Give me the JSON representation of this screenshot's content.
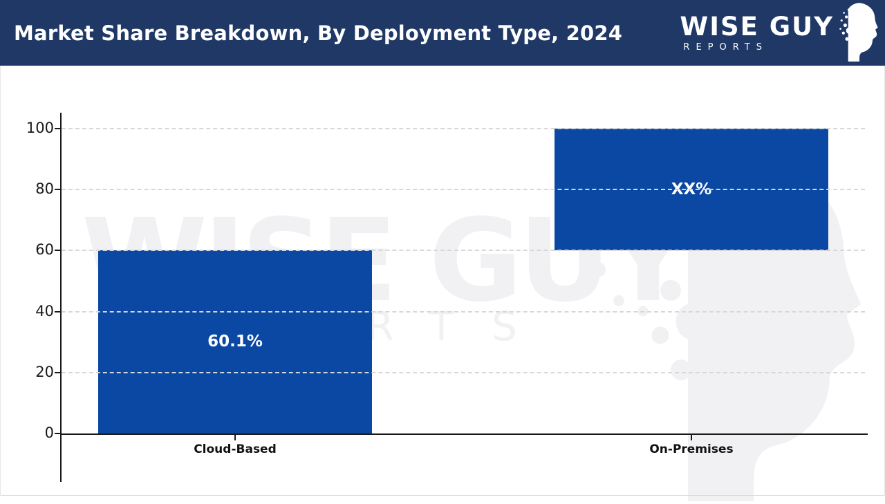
{
  "header": {
    "title": "Market Share Breakdown, By Deployment Type, 2024",
    "bg_color": "#1f3865",
    "logo": {
      "line1": "WISE GUY",
      "line2": "REPORTS"
    }
  },
  "watermark": {
    "line1": "WISE GUY",
    "line2": "REPORTS",
    "color": "#f1f1f4"
  },
  "chart_data": {
    "type": "bar",
    "title": "Market Share Breakdown, By Deployment Type, 2024",
    "categories": [
      "Cloud-Based",
      "On-Premises"
    ],
    "bars": [
      {
        "category": "Cloud-Based",
        "start": 0,
        "end": 60.1,
        "label": "60.1%"
      },
      {
        "category": "On-Premises",
        "start": 60,
        "end": 100,
        "label": "XX%"
      }
    ],
    "ylim": [
      0,
      100
    ],
    "yticks": [
      0,
      20,
      40,
      60,
      80,
      100
    ],
    "grid": "horizontal-dashed",
    "legend_position": "none",
    "xlabel": "",
    "ylabel": "",
    "bar_color": "#0a48a3",
    "grid_color": "#d7d7d7"
  }
}
